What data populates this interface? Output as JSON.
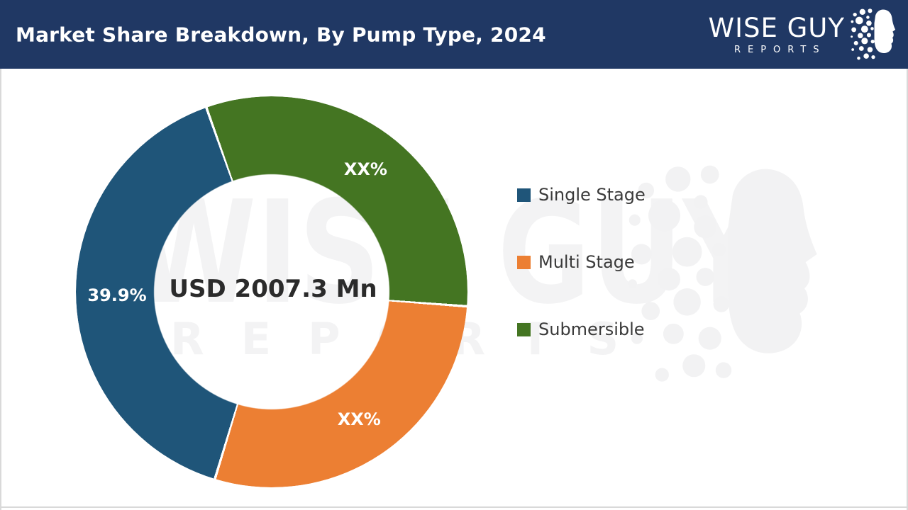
{
  "header": {
    "title": "Market Share Breakdown, By Pump Type, 2024",
    "logo": {
      "name": "WISE GUY",
      "sub": "REPORTS",
      "face_icon": "wiseguy-face-profile"
    }
  },
  "watermark": {
    "line1": "WISE GUY",
    "line2": "REPORTS"
  },
  "chart_data": {
    "type": "pie",
    "subtype": "donut",
    "title": "Market Share Breakdown, By Pump Type, 2024",
    "center_label": "USD 2007.3 Mn",
    "segments": [
      {
        "name": "Single Stage",
        "value_pct": 39.9,
        "display_label": "39.9%",
        "color": "#1F5579"
      },
      {
        "name": "Multi Stage",
        "value_pct": 28.5,
        "display_label": "XX%",
        "color": "#EC7F33"
      },
      {
        "name": "Submersible",
        "value_pct": 31.6,
        "display_label": "XX%",
        "color": "#447522"
      }
    ],
    "legend": {
      "position": "right",
      "entries": [
        "Single Stage",
        "Multi Stage",
        "Submersible"
      ]
    },
    "start_compass_deg": 340.5,
    "gap_deg": 0.75,
    "label_radius_frac": 0.79
  },
  "colors": {
    "header_bg": "#203864",
    "center_text": "#2b2b2b",
    "legend_text": "#3a3a3a",
    "watermark": "#f3f3f4"
  }
}
